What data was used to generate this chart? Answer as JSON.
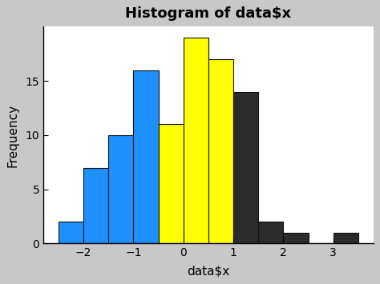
{
  "title": "Histogram of data$x",
  "xlabel": "data$x",
  "ylabel": "Frequency",
  "figure_bg_color": "#c8c8c8",
  "plot_bg_color": "#ffffff",
  "bins": [
    -2.5,
    -2.0,
    -1.5,
    -1.0,
    -0.5,
    0.0,
    0.5,
    1.0,
    1.5,
    2.0,
    2.5,
    3.0,
    3.5
  ],
  "heights": [
    2,
    7,
    10,
    16,
    11,
    19,
    17,
    14,
    2,
    1,
    0,
    1
  ],
  "colors": [
    "#1e90ff",
    "#1e90ff",
    "#1e90ff",
    "#1e90ff",
    "#ffff00",
    "#ffff00",
    "#ffff00",
    "#2b2b2b",
    "#2b2b2b",
    "#2b2b2b",
    "#2b2b2b",
    "#2b2b2b"
  ],
  "edge_color": "#111111",
  "xlim": [
    -2.8,
    3.8
  ],
  "ylim": [
    0,
    20
  ],
  "yticks": [
    0,
    5,
    10,
    15
  ],
  "xticks": [
    -2,
    -1,
    0,
    1,
    2,
    3
  ],
  "title_fontsize": 13,
  "label_fontsize": 11,
  "tick_fontsize": 10
}
